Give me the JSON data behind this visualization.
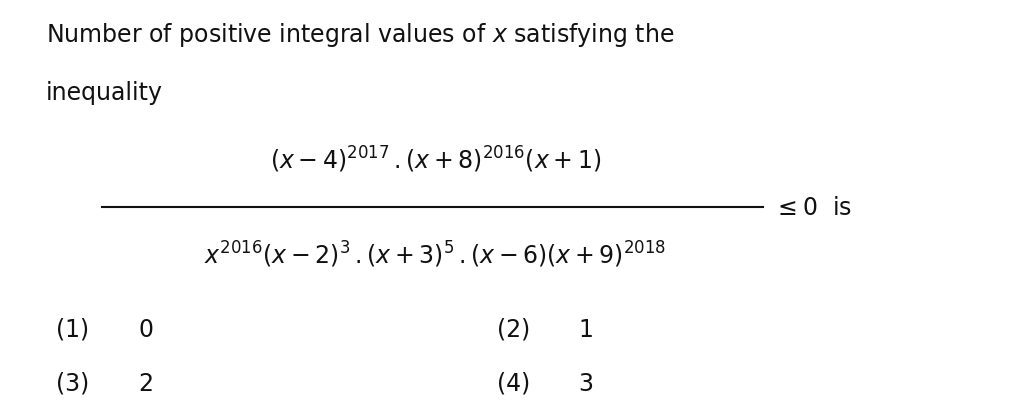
{
  "bg_color": "#ffffff",
  "text_color": "#111111",
  "figsize": [
    10.24,
    4.15
  ],
  "dpi": 100,
  "line1": "Number of positive integral values of $x$ satisfying the",
  "line2": "inequality",
  "numerator": "$(x-4)^{2017}\\,.(x+8)^{2016}(x+1)$",
  "denominator": "$x^{2016}(x-2)^3\\,.(x+3)^5\\,.(x-6)(x+9)^{2018}$",
  "leq_text": "$\\leq 0$  is",
  "opt1_label": "(1)",
  "opt1_val": "0",
  "opt2_label": "(2)",
  "opt2_val": "1",
  "opt3_label": "(3)",
  "opt3_val": "2",
  "opt4_label": "(4)",
  "opt4_val": "3",
  "fs_text": 17,
  "fs_math": 17,
  "fs_opt": 17
}
